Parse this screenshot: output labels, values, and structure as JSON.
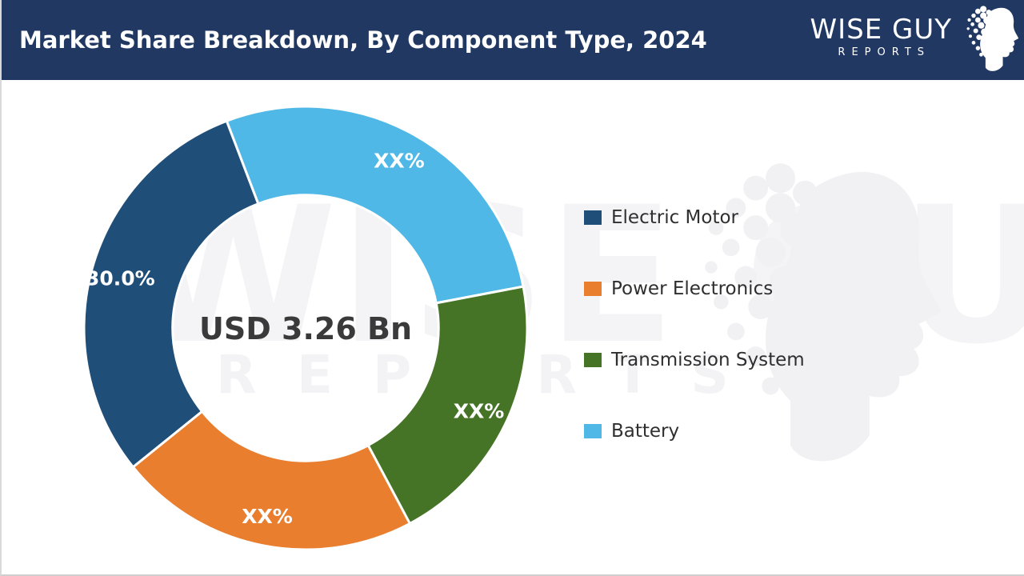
{
  "header": {
    "title": "Market Share Breakdown, By Component Type, 2024",
    "logo": {
      "wordmark": "WISE GUY",
      "tagline": "REPORTS"
    }
  },
  "watermark": {
    "big_text": "WISE GUY",
    "sub_text": "REPORTS"
  },
  "chart_data": {
    "type": "donut",
    "title": "Market Share Breakdown, By Component Type, 2024",
    "center_label": "USD 3.26 Bn",
    "start_angle_deg": 10.8,
    "direction": "counterclockwise",
    "inner_radius_ratio": 0.6,
    "segments": [
      {
        "name": "Battery",
        "label": "XX%",
        "percent_est": 27.8,
        "color": "#4FB8E6"
      },
      {
        "name": "Electric Motor",
        "label": "30.0%",
        "percent_est": 30.0,
        "color": "#1F4E79"
      },
      {
        "name": "Power Electronics",
        "label": "XX%",
        "percent_est": 22.0,
        "color": "#E87E2E"
      },
      {
        "name": "Transmission System",
        "label": "XX%",
        "percent_est": 20.2,
        "color": "#467427"
      }
    ],
    "legend": {
      "position": "right",
      "items": [
        {
          "label": "Electric Motor",
          "color": "#1F4E79"
        },
        {
          "label": "Power Electronics",
          "color": "#E87E2E"
        },
        {
          "label": "Transmission System",
          "color": "#467427"
        },
        {
          "label": "Battery",
          "color": "#4FB8E6"
        }
      ]
    }
  },
  "colors": {
    "header_bg": "#213863",
    "center_text": "#3A3A3A",
    "watermark": "#F4F4F6",
    "border": "#CFCFCF"
  }
}
